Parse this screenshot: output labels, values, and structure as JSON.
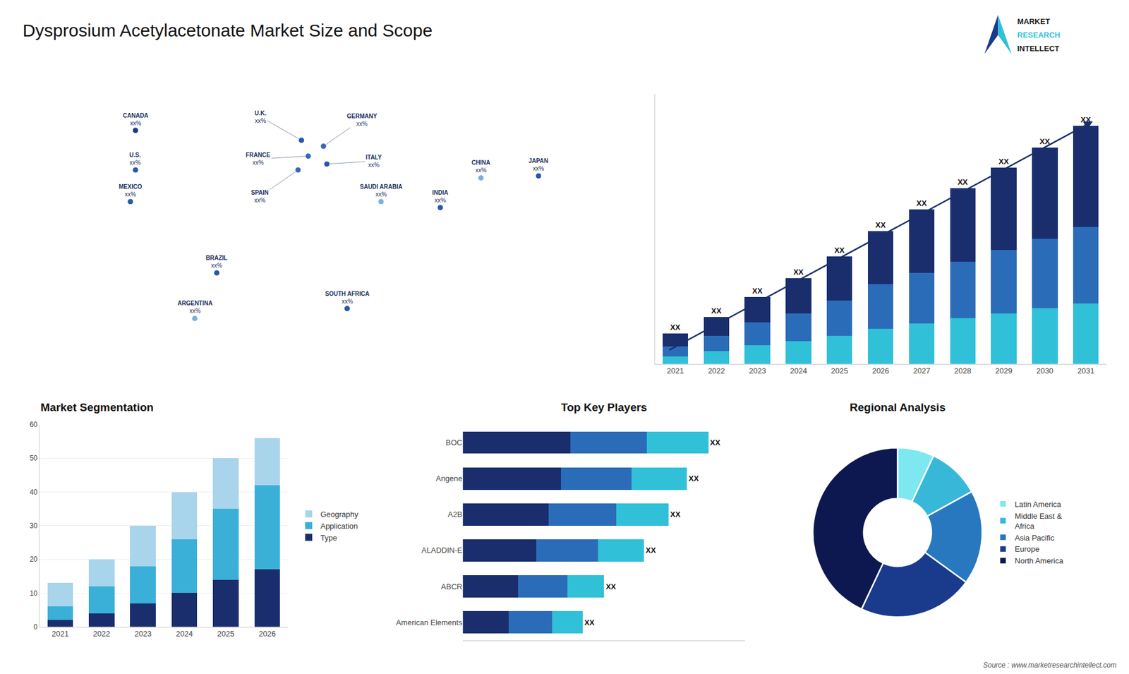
{
  "title": "Dysprosium Acetylacetonate Market Size and Scope",
  "annotations": [
    "Source : www.marketresearchintellect.com",
    "MARKET",
    "RESEARCH",
    "INTELLECT"
  ],
  "chart_data": [
    {
      "type": "map",
      "labels": [
        "CANADA",
        "U.S.",
        "MEXICO",
        "BRAZIL",
        "ARGENTINA",
        "U.K.",
        "FRANCE",
        "SPAIN",
        "GERMANY",
        "ITALY",
        "SAUDI ARABIA",
        "SOUTH AFRICA",
        "CHINA",
        "INDIA",
        "JAPAN"
      ],
      "value_labels": [
        "xx%",
        "xx%",
        "xx%",
        "xx%",
        "xx%",
        "xx%",
        "xx%",
        "xx%",
        "xx%",
        "xx%",
        "xx%",
        "xx%",
        "xx%",
        "xx%",
        "xx%"
      ],
      "x": [
        -100,
        -100,
        -103,
        -52,
        -65,
        -2,
        2,
        -4,
        11,
        13,
        45,
        25,
        104,
        80,
        138
      ],
      "y": [
        60,
        40,
        24,
        -12,
        -35,
        55,
        47,
        40,
        52,
        43,
        24,
        -30,
        36,
        21,
        37
      ],
      "colors": [
        "#1a3a8c",
        "#2858a8",
        "#2858a8",
        "#2858a8",
        "#7ab0e0",
        "#2858a8",
        "#3568b8",
        "#3568b8",
        "#3568b8",
        "#2858a8",
        "#7ab0e0",
        "#2858a8",
        "#7ab0e0",
        "#2858a8",
        "#2858a8"
      ],
      "xlim": [
        -180,
        180
      ],
      "ylim": [
        -58,
        85
      ],
      "tick_labels": false
    },
    {
      "type": "bar",
      "stacked": true,
      "categories": [
        "2021",
        "2022",
        "2023",
        "2024",
        "2025",
        "2026",
        "2027",
        "2028",
        "2029",
        "2030",
        "2031"
      ],
      "series": [
        {
          "color": "#30c0d8",
          "values": [
            0.6,
            1.0,
            1.5,
            1.8,
            2.2,
            2.8,
            3.2,
            3.6,
            4.0,
            4.4,
            4.8
          ]
        },
        {
          "color": "#2b6cb8",
          "values": [
            0.8,
            1.2,
            1.8,
            2.2,
            2.8,
            3.5,
            4.0,
            4.5,
            5.0,
            5.5,
            6.0
          ]
        },
        {
          "color": "#1a2e6e",
          "values": [
            1.0,
            1.5,
            2.0,
            2.8,
            3.5,
            4.2,
            5.0,
            5.8,
            6.5,
            7.2,
            8.0
          ]
        }
      ],
      "total_labels": [
        "XX",
        "XX",
        "XX",
        "XX",
        "XX",
        "XX",
        "XX",
        "XX",
        "XX",
        "XX",
        "XX"
      ],
      "ylim": [
        0,
        21.3
      ],
      "tick_labels": "x",
      "grid": false
    },
    {
      "type": "bar",
      "stacked": true,
      "title": "Market Segmentation",
      "categories": [
        "2021",
        "2022",
        "2023",
        "2024",
        "2025",
        "2026"
      ],
      "series": [
        {
          "name": "Type",
          "color": "#1a2e6e",
          "values": [
            2,
            4,
            7,
            10,
            14,
            17
          ]
        },
        {
          "name": "Application",
          "color": "#3ab0d8",
          "values": [
            4,
            8,
            11,
            16,
            21,
            25
          ]
        },
        {
          "name": "Geography",
          "color": "#a8d4ec",
          "values": [
            7,
            8,
            12,
            14,
            15,
            14
          ]
        }
      ],
      "ylim": [
        0,
        60
      ],
      "yticks": [
        0,
        10,
        20,
        30,
        40,
        50,
        60
      ],
      "grid": true,
      "legend": "right"
    },
    {
      "type": "bar",
      "stacked": true,
      "orientation": "horizontal",
      "title": "Top Key Players",
      "categories": [
        "BOC",
        "Angene",
        "A2B",
        "ALADDIN-E",
        "ABCR",
        "American Elements"
      ],
      "series": [
        {
          "color": "#1a2e6e",
          "values": [
            35,
            32,
            28,
            24,
            18,
            15
          ]
        },
        {
          "color": "#2b6cb8",
          "values": [
            25,
            23,
            22,
            20,
            16,
            14
          ]
        },
        {
          "color": "#30c0d8",
          "values": [
            20,
            18,
            17,
            15,
            12,
            10
          ]
        }
      ],
      "total_labels": [
        "XX",
        "XX",
        "XX",
        "XX",
        "XX",
        "XX"
      ],
      "xlim": [
        0,
        92
      ],
      "tick_labels": "y",
      "grid": false
    },
    {
      "type": "pie",
      "title": "Regional Analysis",
      "categories": [
        "Latin America",
        "Middle East &\nAfrica",
        "Asia Pacific",
        "Europe",
        "North America"
      ],
      "values": [
        7,
        10,
        18,
        22,
        43
      ],
      "colors": [
        "#7de8f0",
        "#38b8d8",
        "#2878c0",
        "#1a3a8c",
        "#0d1850"
      ],
      "legend": "right"
    }
  ]
}
